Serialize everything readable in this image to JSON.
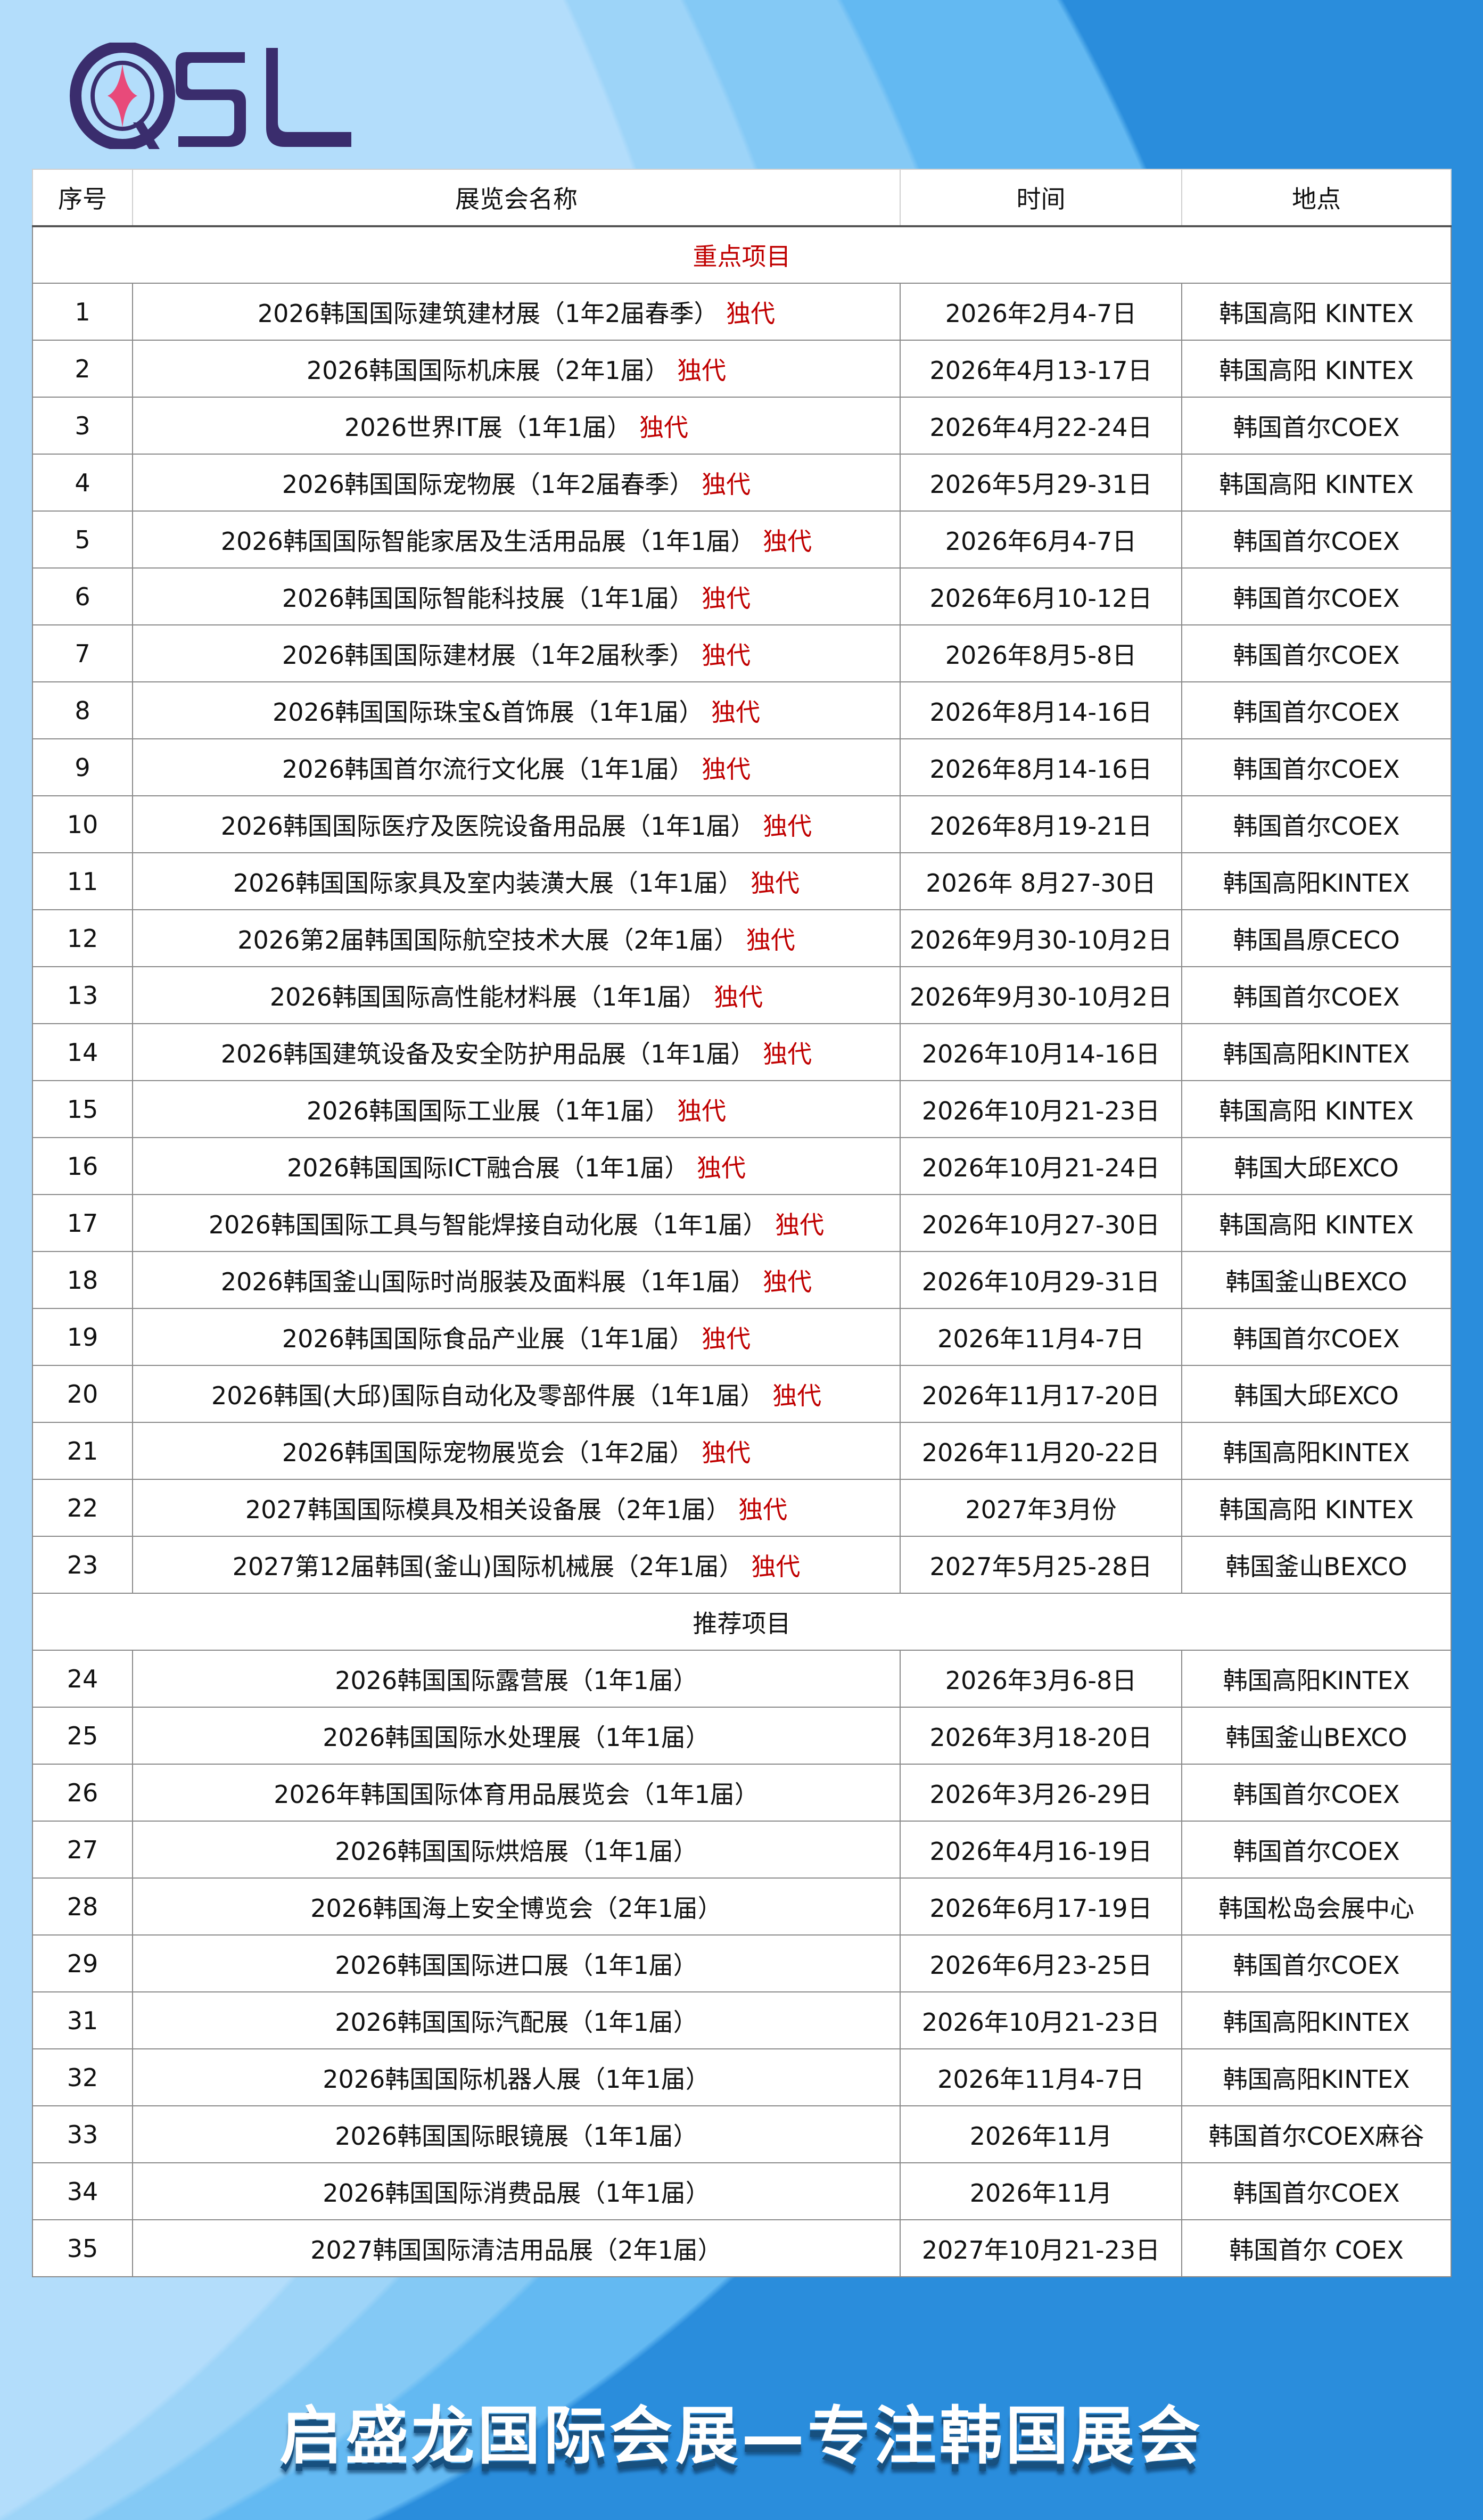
{
  "brand": {
    "logo_text": "QSL",
    "colors": {
      "navy": "#3a2d6d",
      "pink": "#e84a7a",
      "blue": "#2a8ddc",
      "red": "#c00000"
    }
  },
  "table": {
    "headers": [
      "序号",
      "展览会名称",
      "时间",
      "地点"
    ],
    "sections": [
      {
        "title": "重点项目",
        "title_color": "#c00000",
        "rows": [
          {
            "no": "1",
            "name": "2026韩国国际建筑建材展（1年2届春季）",
            "tag": "独代",
            "time": "2026年2月4-7日",
            "place": "韩国高阳 KINTEX"
          },
          {
            "no": "2",
            "name": "2026韩国国际机床展（2年1届）",
            "tag": "独代",
            "time": "2026年4月13-17日",
            "place": "韩国高阳 KINTEX"
          },
          {
            "no": "3",
            "name": "2026世界IT展（1年1届）",
            "tag": "独代",
            "time": "2026年4月22-24日",
            "place": "韩国首尔COEX"
          },
          {
            "no": "4",
            "name": "2026韩国国际宠物展（1年2届春季）",
            "tag": "独代",
            "time": "2026年5月29-31日",
            "place": "韩国高阳 KINTEX"
          },
          {
            "no": "5",
            "name": "2026韩国国际智能家居及生活用品展（1年1届）",
            "tag": "独代",
            "time": "2026年6月4-7日",
            "place": "韩国首尔COEX"
          },
          {
            "no": "6",
            "name": "2026韩国国际智能科技展（1年1届）",
            "tag": "独代",
            "time": "2026年6月10-12日",
            "place": "韩国首尔COEX"
          },
          {
            "no": "7",
            "name": "2026韩国国际建材展（1年2届秋季）",
            "tag": "独代",
            "time": "2026年8月5-8日",
            "place": "韩国首尔COEX"
          },
          {
            "no": "8",
            "name": "2026韩国国际珠宝&首饰展（1年1届）",
            "tag": "独代",
            "time": "2026年8月14-16日",
            "place": "韩国首尔COEX"
          },
          {
            "no": "9",
            "name": "2026韩国首尔流行文化展（1年1届）",
            "tag": "独代",
            "time": "2026年8月14-16日",
            "place": "韩国首尔COEX"
          },
          {
            "no": "10",
            "name": "2026韩国国际医疗及医院设备用品展（1年1届）",
            "tag": "独代",
            "time": "2026年8月19-21日",
            "place": "韩国首尔COEX"
          },
          {
            "no": "11",
            "name": "2026韩国国际家具及室内装潢大展（1年1届）",
            "tag": "独代",
            "time": "2026年 8月27-30日",
            "place": "韩国高阳KINTEX"
          },
          {
            "no": "12",
            "name": "2026第2届韩国国际航空技术大展（2年1届）",
            "tag": "独代",
            "time": "2026年9月30-10月2日",
            "place": "韩国昌原CECO"
          },
          {
            "no": "13",
            "name": "2026韩国国际高性能材料展（1年1届）",
            "tag": "独代",
            "time": "2026年9月30-10月2日",
            "place": "韩国首尔COEX"
          },
          {
            "no": "14",
            "name": "2026韩国建筑设备及安全防护用品展（1年1届）",
            "tag": "独代",
            "time": "2026年10月14-16日",
            "place": "韩国高阳KINTEX"
          },
          {
            "no": "15",
            "name": "2026韩国国际工业展（1年1届）",
            "tag": "独代",
            "time": "2026年10月21-23日",
            "place": "韩国高阳 KINTEX"
          },
          {
            "no": "16",
            "name": "2026韩国国际ICT融合展（1年1届）",
            "tag": "独代",
            "time": "2026年10月21-24日",
            "place": "韩国大邱EXCO"
          },
          {
            "no": "17",
            "name": "2026韩国国际工具与智能焊接自动化展（1年1届）",
            "tag": "独代",
            "time": "2026年10月27-30日",
            "place": "韩国高阳 KINTEX"
          },
          {
            "no": "18",
            "name": "2026韩国釜山国际时尚服装及面料展（1年1届）",
            "tag": "独代",
            "time": "2026年10月29-31日",
            "place": "韩国釜山BEXCO"
          },
          {
            "no": "19",
            "name": "2026韩国国际食品产业展（1年1届）",
            "tag": "独代",
            "time": "2026年11月4-7日",
            "place": "韩国首尔COEX"
          },
          {
            "no": "20",
            "name": "2026韩国(大邱)国际自动化及零部件展（1年1届）",
            "tag": "独代",
            "time": "2026年11月17-20日",
            "place": "韩国大邱EXCO"
          },
          {
            "no": "21",
            "name": "2026韩国国际宠物展览会（1年2届）",
            "tag": "独代",
            "time": "2026年11月20-22日",
            "place": "韩国高阳KINTEX"
          },
          {
            "no": "22",
            "name": "2027韩国国际模具及相关设备展（2年1届）",
            "tag": "独代",
            "time": "2027年3月份",
            "place": "韩国高阳 KINTEX"
          },
          {
            "no": "23",
            "name": "2027第12届韩国(釜山)国际机械展（2年1届）",
            "tag": "独代",
            "time": "2027年5月25-28日",
            "place": "韩国釜山BEXCO"
          }
        ]
      },
      {
        "title": "推荐项目",
        "title_color": "#111111",
        "rows": [
          {
            "no": "24",
            "name": "2026韩国国际露营展（1年1届）",
            "tag": "",
            "time": "2026年3月6-8日",
            "place": "韩国高阳KINTEX"
          },
          {
            "no": "25",
            "name": "2026韩国国际水处理展（1年1届）",
            "tag": "",
            "time": "2026年3月18-20日",
            "place": "韩国釜山BEXCO"
          },
          {
            "no": "26",
            "name": "2026年韩国国际体育用品展览会（1年1届）",
            "tag": "",
            "time": "2026年3月26-29日",
            "place": "韩国首尔COEX"
          },
          {
            "no": "27",
            "name": "2026韩国国际烘焙展（1年1届）",
            "tag": "",
            "time": "2026年4月16-19日",
            "place": "韩国首尔COEX"
          },
          {
            "no": "28",
            "name": "2026韩国海上安全博览会（2年1届）",
            "tag": "",
            "time": "2026年6月17-19日",
            "place": "韩国松岛会展中心"
          },
          {
            "no": "29",
            "name": "2026韩国国际进口展（1年1届）",
            "tag": "",
            "time": "2026年6月23-25日",
            "place": "韩国首尔COEX"
          },
          {
            "no": "31",
            "name": "2026韩国国际汽配展（1年1届）",
            "tag": "",
            "time": "2026年10月21-23日",
            "place": "韩国高阳KINTEX"
          },
          {
            "no": "32",
            "name": "2026韩国国际机器人展（1年1届）",
            "tag": "",
            "time": "2026年11月4-7日",
            "place": "韩国高阳KINTEX"
          },
          {
            "no": "33",
            "name": "2026韩国国际眼镜展（1年1届）",
            "tag": "",
            "time": "2026年11月",
            "place": "韩国首尔COEX麻谷"
          },
          {
            "no": "34",
            "name": "2026韩国国际消费品展（1年1届）",
            "tag": "",
            "time": "2026年11月",
            "place": "韩国首尔COEX"
          },
          {
            "no": "35",
            "name": "2027韩国国际清洁用品展（2年1届）",
            "tag": "",
            "time": "2027年10月21-23日",
            "place": "韩国首尔 COEX"
          }
        ]
      }
    ]
  },
  "footer": {
    "slogan": "启盛龙国际会展—专注韩国展会"
  }
}
